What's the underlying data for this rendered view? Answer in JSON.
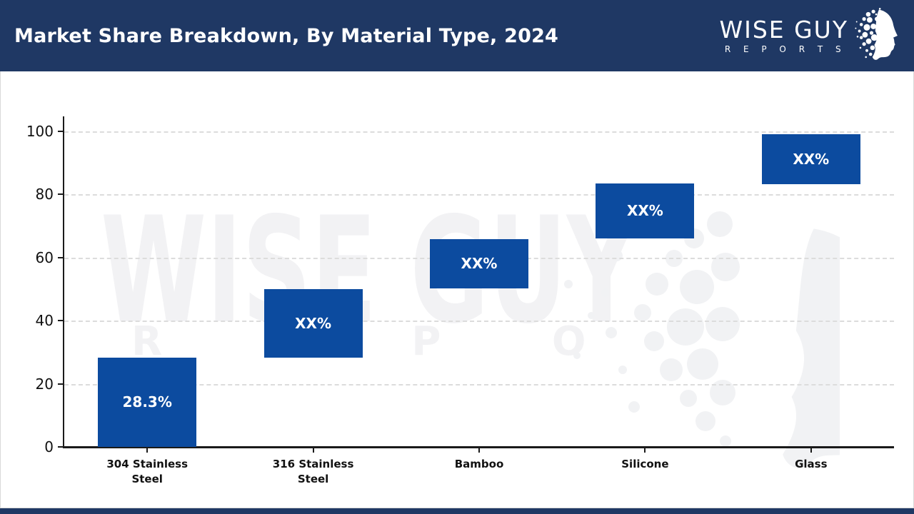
{
  "header": {
    "title": "Market Share Breakdown, By Material Type, 2024",
    "logo": {
      "line1": "WISE GUY",
      "line2": "R E P O R T S"
    }
  },
  "watermark": {
    "line1": "WISE GUY",
    "line2": "R E P O R T S"
  },
  "chart_data": {
    "type": "bar",
    "subtype": "waterfall",
    "title": "Market Share Breakdown, By Material Type, 2024",
    "categories": [
      "304 Stainless\nSteel",
      "316 Stainless\nSteel",
      "Bamboo",
      "Silicone",
      "Glass"
    ],
    "segments": [
      {
        "category": "304 Stainless Steel",
        "start": 0,
        "end": 28.3,
        "label": "28.3%"
      },
      {
        "category": "316 Stainless Steel",
        "start": 28.3,
        "end": 50.1,
        "label": "XX%"
      },
      {
        "category": "Bamboo",
        "start": 50.3,
        "end": 65.9,
        "label": "XX%"
      },
      {
        "category": "Silicone",
        "start": 66.1,
        "end": 83.5,
        "label": "XX%"
      },
      {
        "category": "Glass",
        "start": 83.3,
        "end": 99.2,
        "label": "XX%"
      }
    ],
    "ylim": [
      0,
      100
    ],
    "yticks": [
      0,
      20,
      40,
      60,
      80,
      100
    ],
    "xlabel": "",
    "ylabel": "",
    "grid": "horizontal-dashed",
    "legend": "none",
    "bar_color": "#0c4b9f",
    "bar_label_color": "#ffffff"
  },
  "colors": {
    "header_bg": "#1f3864",
    "footer_bg": "#1f3864",
    "bar": "#0c4b9f",
    "grid": "#dcdcdc",
    "axis": "#1a1a1a",
    "watermark": "#f2f2f4"
  }
}
